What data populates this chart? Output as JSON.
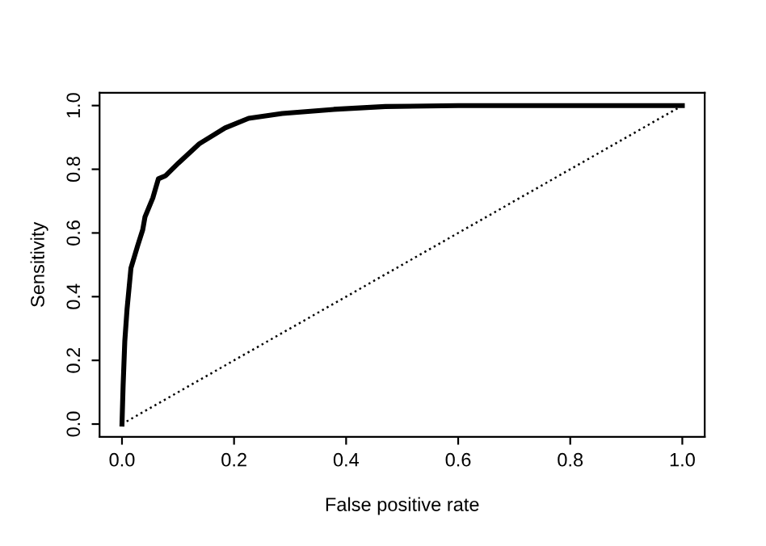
{
  "chart_data": {
    "type": "line",
    "xlabel": "False positive rate",
    "ylabel": "Sensitivity",
    "xlim": [
      -0.04,
      1.04
    ],
    "ylim": [
      -0.04,
      1.04
    ],
    "xticks": [
      {
        "value": 0,
        "label": "0.0"
      },
      0.2,
      0.4,
      0.6,
      0.8,
      {
        "value": 1,
        "label": "1.0"
      }
    ],
    "yticks": [
      {
        "value": 0,
        "label": "0.0"
      },
      0.2,
      0.4,
      0.6,
      0.8,
      {
        "value": 1,
        "label": "1.0"
      }
    ],
    "grid": false,
    "legend": false,
    "series": [
      {
        "color": "#000000",
        "line_style": "solid",
        "x": [
          0,
          0.002,
          0.005,
          0.009,
          0.016,
          0.028,
          0.037,
          0.041,
          0.055,
          0.06,
          0.065,
          0.078,
          0.101,
          0.138,
          0.184,
          0.226,
          0.286,
          0.378,
          0.47,
          0.6,
          0.8,
          1.0
        ],
        "values": [
          0,
          0.12,
          0.26,
          0.36,
          0.49,
          0.56,
          0.61,
          0.65,
          0.71,
          0.74,
          0.77,
          0.78,
          0.82,
          0.88,
          0.93,
          0.96,
          0.975,
          0.988,
          0.997,
          1.0,
          1.0,
          1.0
        ]
      },
      {
        "color": "#000000",
        "line_style": "dotted",
        "x": [
          0,
          1
        ],
        "values": [
          0,
          1
        ]
      }
    ]
  }
}
